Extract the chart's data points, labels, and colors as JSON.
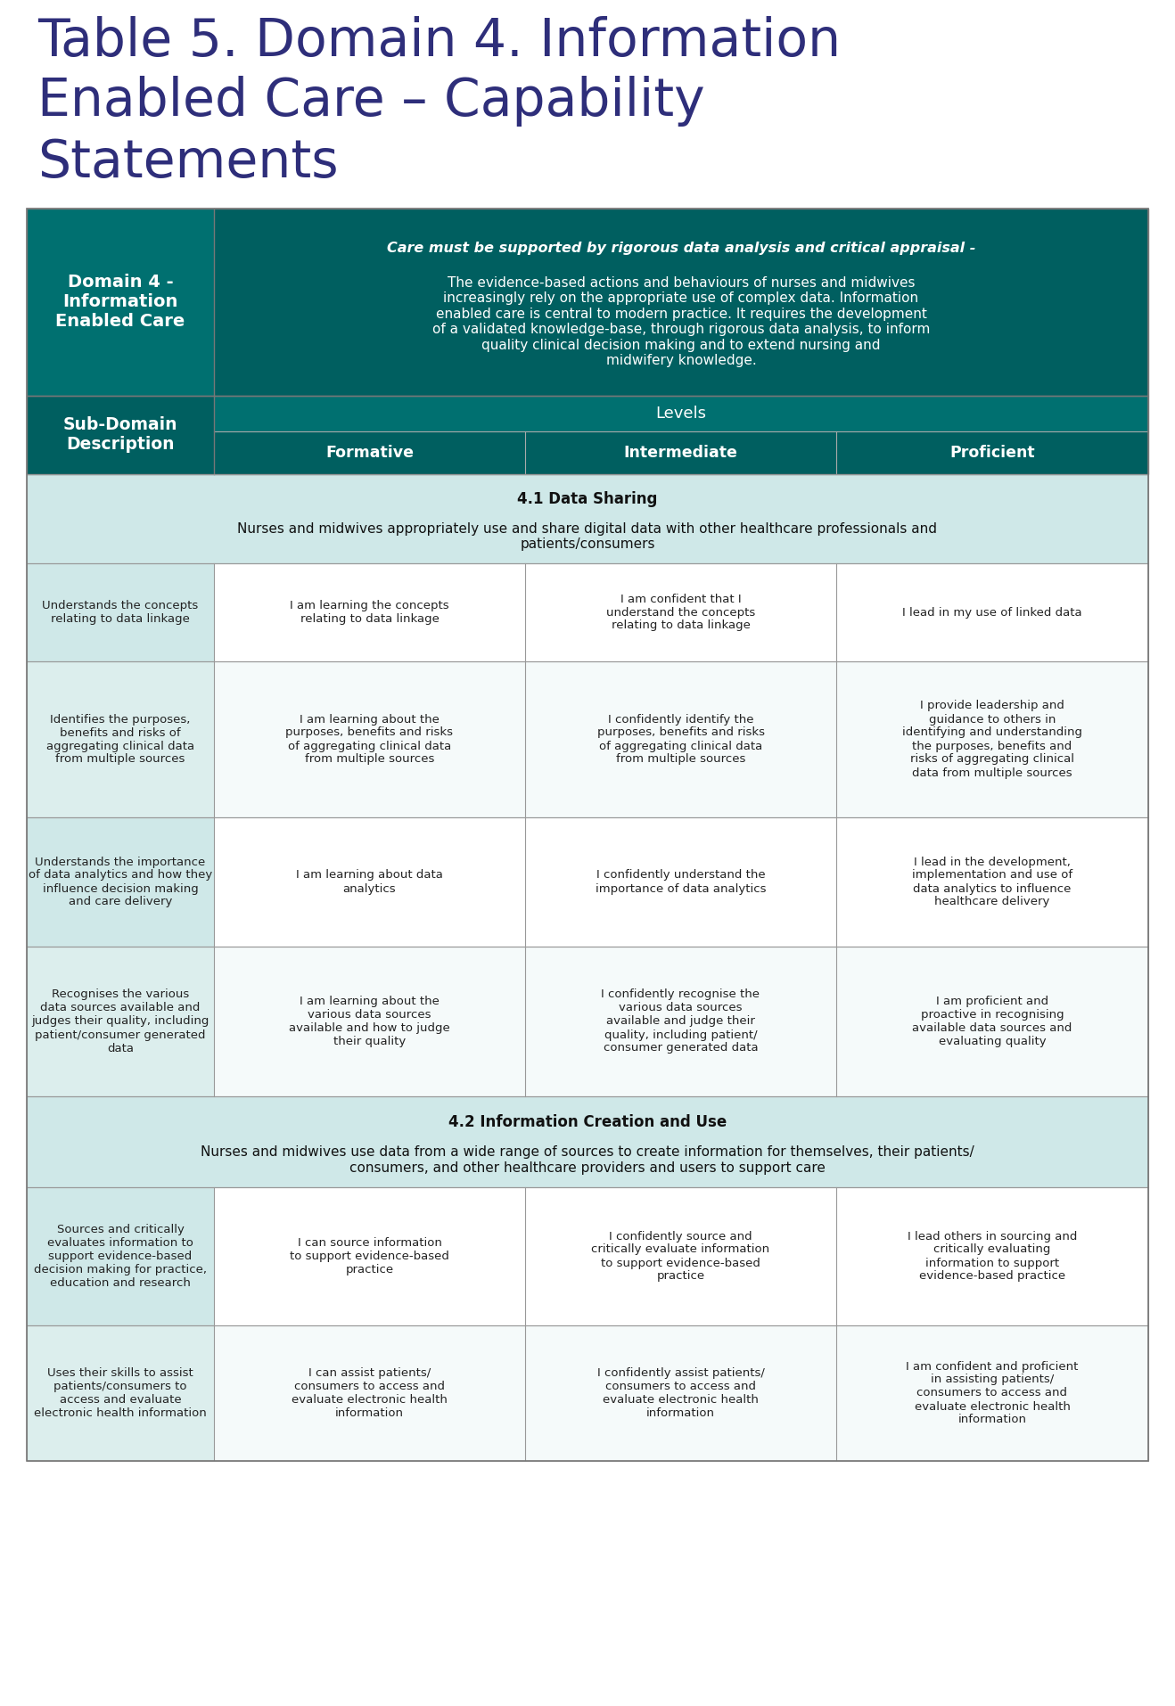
{
  "title_line1": "Table 5. Domain 4. Information",
  "title_line2": "Enabled Care – Capability",
  "title_line3": "Statements",
  "title_color": "#2e2e7a",
  "bg_color": "#ffffff",
  "teal_dark": "#005f60",
  "teal_mid": "#007070",
  "teal_light_bg": "#cce5e5",
  "teal_very_light": "#e8f4f4",
  "section_bg": "#cfe8e8",
  "row_alt0_col0": "#cfe8e8",
  "row_alt0_cols": "#ffffff",
  "row_alt1_col0": "#dceeed",
  "row_alt1_cols": "#f5fafa",
  "domain_label": "Domain 4 -\nInformation\nEnabled Care",
  "domain_text_bold_italic": "Care must be supported by rigorous data analysis and critical appraisal -",
  "domain_text_normal": "The evidence-based actions and behaviours of nurses and midwives\nincreasingly rely on the appropriate use of complex data. Information\nenabled care is central to modern practice. It requires the development\nof a validated knowledge-base, through rigorous data analysis, to inform\nquality clinical decision making and to extend nursing and\nmidwifery knowledge.",
  "subdomain_label": "Sub-Domain\nDescription",
  "levels_label": "Levels",
  "col_headers": [
    "Formative",
    "Intermediate",
    "Proficient"
  ],
  "section1_title": "4.1 Data Sharing",
  "section1_desc": "Nurses and midwives appropriately use and share digital data with other healthcare professionals and\npatients/consumers",
  "section2_title": "4.2 Information Creation and Use",
  "section2_desc": "Nurses and midwives use data from a wide range of sources to create information for themselves, their patients/\nconsumers, and other healthcare providers and users to support care",
  "rows": [
    {
      "sub": "Understands the concepts\nrelating to data linkage",
      "f_pre": "I am ",
      "f_bold": "learning",
      "f_post": " the concepts\nrelating to data linkage",
      "i_pre": "I am ",
      "i_bold": "confident",
      "i_post": " that I\nunderstand the concepts\nrelating to data linkage",
      "p_pre": "I ",
      "p_bold": "lead",
      "p_post": " in my use of linked data"
    },
    {
      "sub": "Identifies the purposes,\nbenefits and risks of\naggregating clinical data\nfrom multiple sources",
      "f_pre": "I am ",
      "f_bold": "learning",
      "f_post": " about the\npurposes, benefits and risks\nof aggregating clinical data\nfrom multiple sources",
      "i_pre": "I ",
      "i_bold": "confidently",
      "i_post": " identify the\npurposes, benefits and risks\nof aggregating clinical data\nfrom multiple sources",
      "p_pre": "I provide ",
      "p_bold": "leadership",
      "p_post": " and\nguidance to others in\nidentifying and understanding\nthe purposes, benefits and\nrisks of aggregating clinical\ndata from multiple sources"
    },
    {
      "sub": "Understands the importance\nof data analytics and how they\ninfluence decision making\nand care delivery",
      "f_pre": "I am ",
      "f_bold": "learning",
      "f_post": " about data\nanalytics",
      "i_pre": "I ",
      "i_bold": "confidently",
      "i_post": " understand the\nimportance of data analytics",
      "p_pre": "I ",
      "p_bold": "lead",
      "p_post": " in the development,\nimplementation and use of\ndata analytics to influence\nhealthcare delivery"
    },
    {
      "sub": "Recognises the various\ndata sources available and\njudges their quality, including\npatient/consumer generated\ndata",
      "f_pre": "I am ",
      "f_bold": "learning",
      "f_post": " about the\nvarious data sources\navailable and how to judge\ntheir quality",
      "i_pre": "I ",
      "i_bold": "confidently",
      "i_post": " recognise the\nvarious data sources\navailable and judge their\nquality, including patient/\nconsumer generated data",
      "p_pre": "",
      "p_bold": "",
      "p_post": "I am proficient and\nproactive in recognising\navailable data sources and\nevaluating quality"
    },
    {
      "sub": "Sources and critically\nevaluates information to\nsupport evidence-based\ndecision making for practice,\neducation and research",
      "f_pre": "I ",
      "f_bold": "can",
      "f_post": " source information\nto support evidence-based\npractice",
      "i_pre": "I ",
      "i_bold": "confidently",
      "i_post": " source and\ncritically evaluate information\nto support evidence-based\npractice",
      "p_pre": "I ",
      "p_bold": "lead",
      "p_post": " others in sourcing and\ncritically evaluating\ninformation to support\nevidence-based practice"
    },
    {
      "sub": "Uses their skills to assist\npatients/consumers to\naccess and evaluate\nelectronic health information",
      "f_pre": "I ",
      "f_bold": "can",
      "f_post": " assist patients/\nconsumers to access and\nevaluate electronic health\ninformation",
      "i_pre": "I ",
      "i_bold": "confidently",
      "i_post": " assist patients/\nconsumers to access and\nevaluate electronic health\ninformation",
      "p_pre": "I am ",
      "p_bold": "confident",
      "p_post": " and proficient\nin assisting patients/\nconsumers to access and\nevaluate electronic health\ninformation"
    }
  ]
}
